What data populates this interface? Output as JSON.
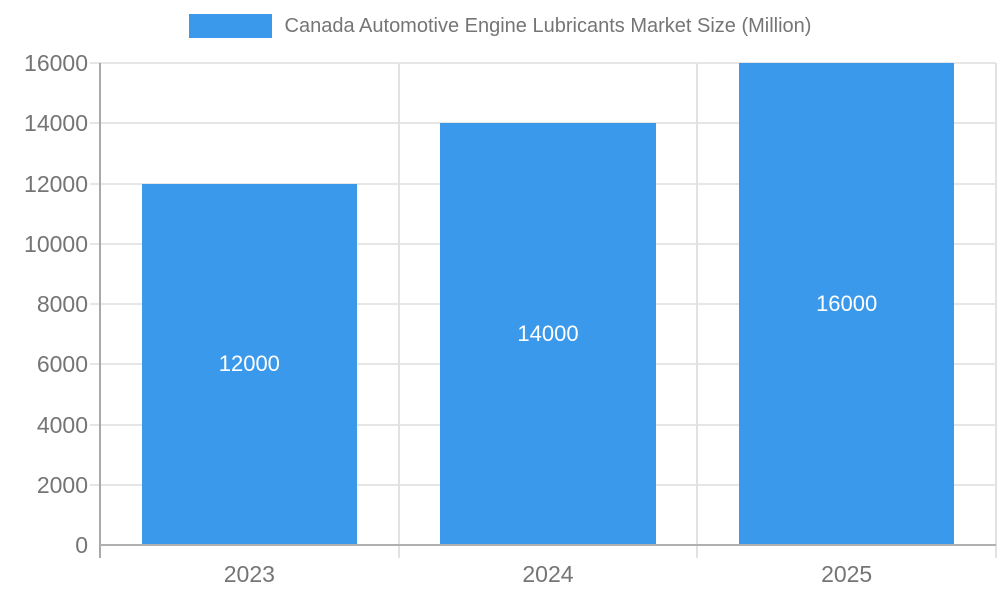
{
  "legend": {
    "label": "Canada Automotive Engine Lubricants Market Size (Million)",
    "swatch_color": "#3b99ec"
  },
  "chart_data": {
    "type": "bar",
    "title": "Canada Automotive Engine Lubricants Market Size (Million)",
    "categories": [
      "2023",
      "2024",
      "2025"
    ],
    "values": [
      12000,
      14000,
      16000
    ],
    "bar_labels": [
      "12000",
      "14000",
      "16000"
    ],
    "xlabel": "",
    "ylabel": "",
    "ylim": [
      0,
      16000
    ],
    "yticks": [
      0,
      2000,
      4000,
      6000,
      8000,
      10000,
      12000,
      14000,
      16000
    ],
    "grid": true,
    "legend_position": "top-center",
    "bar_width_fraction": 0.72,
    "colors": {
      "bar": "#3b99ec",
      "bar_label_text": "#ffffff",
      "axis_text": "#757575",
      "legend_text": "#757575",
      "gridline": "#e6e6e6",
      "axis_line": "#b0b0b0",
      "background": "#ffffff"
    }
  }
}
